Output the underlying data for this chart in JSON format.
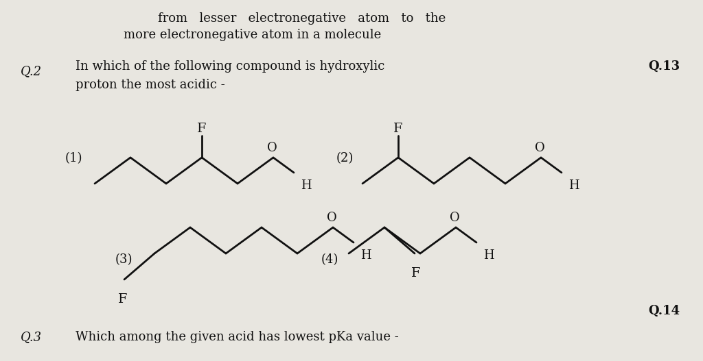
{
  "page_color": "#e8e6e0",
  "text_color": "#111111",
  "line1": "from   lesser   electronegative   atom   to   the",
  "line2": "more electronegative atom in a molecule",
  "q2_label": "Q.2",
  "q2_text1": "In which of the following compound is hydroxylic",
  "q2_text2": "proton the most acidic -",
  "q13": "Q.13",
  "q14": "Q.14",
  "q3_label": "Q.3",
  "q3_text": "Which among the given acid has lowest pKa value -",
  "lbl1": "(1)",
  "lbl2": "(2)",
  "lbl3": "(3)",
  "lbl4": "(4)"
}
